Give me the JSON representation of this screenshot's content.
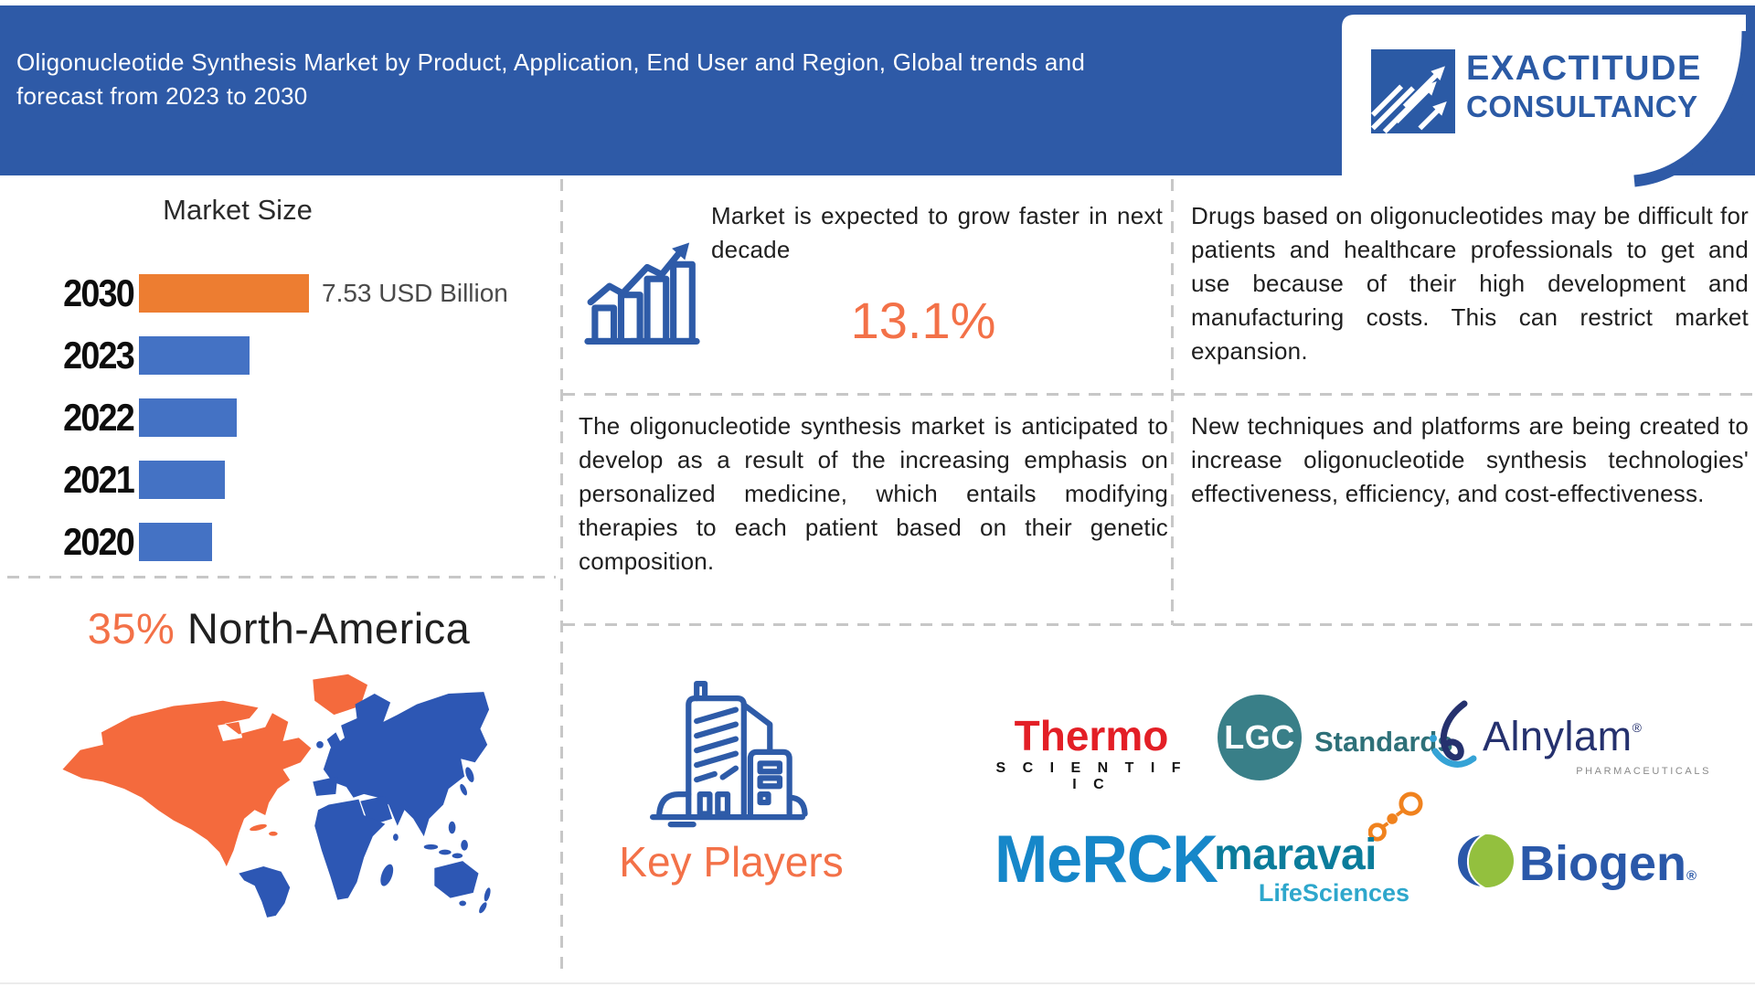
{
  "colors": {
    "banner-blue": "#2E5AA7",
    "icon-blue": "#2E5BA8",
    "logo-blue": "#2B5AA5",
    "bar-blue": "#4472C4",
    "bar-orange": "#ED7D31",
    "accent-coral": "#F37148",
    "map-orange": "#F46A3D",
    "map-blue": "#2D57B4",
    "text-dark": "#1F1F1F",
    "text-gray": "#4A4A4A",
    "dash-gray": "#C7C7C7",
    "thermo-red": "#E31F26",
    "lgc-teal": "#397F88",
    "lgc-text-teal": "#2E7078",
    "alnylam-navy": "#25316E",
    "alnylam-cyan": "#35A3D6",
    "alnylam-gray": "#8A8A8A",
    "merck-blue": "#1687C9",
    "maravai-teal": "#0B7C9B",
    "maravai-lightblue": "#2EA7CC",
    "maravai-orange": "#F0821E",
    "biogen-blue": "#2A58A9",
    "biogen-green": "#93C03E"
  },
  "banner": {
    "title_line1": "Oligonucleotide Synthesis Market by Product, Application, End User and Region, Global trends and",
    "title_line2": "forecast from 2023 to 2030"
  },
  "logo": {
    "line1": "EXACTITUDE",
    "line2": "CONSULTANCY"
  },
  "chart_data": {
    "type": "bar",
    "orientation": "horizontal",
    "title": "Market Size",
    "categories": [
      "2030",
      "2023",
      "2022",
      "2021",
      "2020"
    ],
    "values": [
      7.53,
      4.9,
      4.35,
      3.8,
      3.25
    ],
    "unit": "USD Billion",
    "value_label": "7.53 USD Billion",
    "highlight_category": "2030",
    "note": "Only the 2030 bar is labeled (7.53 USD Billion); other values estimated from bar lengths",
    "bar_colors": {
      "highlight": "#ED7D31",
      "default": "#4472C4"
    },
    "legend": "none",
    "grid": "off"
  },
  "growth": {
    "text": "Market is expected to grow faster in next decade",
    "cagr": "13.1%"
  },
  "restraint": {
    "text": "Drugs based on oligonucleotides may be difficult for patients and healthcare professionals to get and use because of their high development and manufacturing costs. This can restrict market expansion."
  },
  "driver": {
    "text": "The oligonucleotide synthesis market is anticipated to develop as a result of the increasing emphasis on personalized medicine, which entails modifying therapies to each patient based on their genetic composition."
  },
  "innovation": {
    "text": "New techniques and platforms are being created to increase oligonucleotide synthesis technologies' effectiveness, efficiency, and cost-effectiveness."
  },
  "region": {
    "share": "35%",
    "name": "North-America"
  },
  "key_players": {
    "label": "Key Players",
    "companies": [
      {
        "name": "Thermo Scientific",
        "line1": "Thermo",
        "line2": "S C I E N T I F I C"
      },
      {
        "name": "LGC Standards",
        "badge": "LGC",
        "label": "Standards"
      },
      {
        "name": "Alnylam Pharmaceuticals",
        "line1": "Alnylam",
        "reg": "®",
        "line2": "PHARMACEUTICALS"
      },
      {
        "name": "Merck",
        "wordmark": "MeRCK"
      },
      {
        "name": "Maravai LifeSciences",
        "line1": "maravai",
        "line2": "LifeSciences"
      },
      {
        "name": "Biogen",
        "wordmark": "Biogen",
        "reg": "®"
      }
    ]
  }
}
